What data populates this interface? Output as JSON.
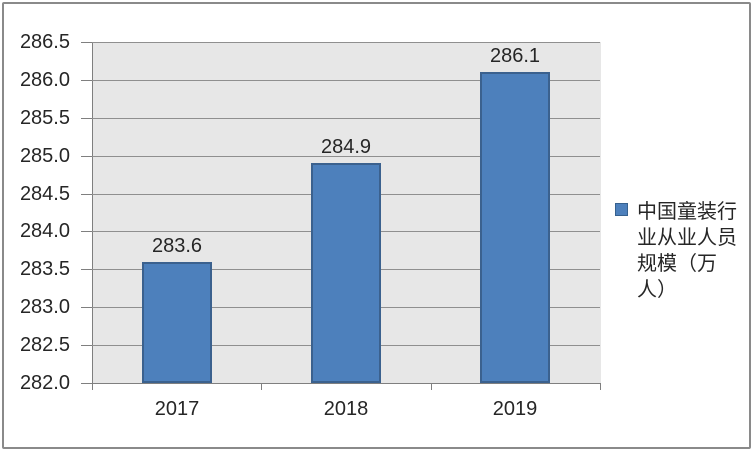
{
  "chart_data": {
    "type": "bar",
    "title": "",
    "categories": [
      "2017",
      "2018",
      "2019"
    ],
    "series": [
      {
        "name": "中国童装行业从业人员规模（万人）",
        "values": [
          283.6,
          284.9,
          286.1
        ],
        "color": "#4d80bc"
      }
    ],
    "data_labels": [
      "283.6",
      "284.9",
      "286.1"
    ],
    "xlabel": "",
    "ylabel": "",
    "ylim": [
      282.0,
      286.5
    ],
    "ytick_step": 0.5,
    "ytick_labels": [
      "286.5",
      "286.0",
      "285.5",
      "285.0",
      "284.5",
      "284.0",
      "283.5",
      "283.0",
      "282.5",
      "282.0"
    ],
    "grid": true,
    "legend_position": "right"
  },
  "legend": {
    "label": "中国童装行业从业人员规模（万人）",
    "marker": "blue-square"
  },
  "colors": {
    "bar_fill": "#4d80bc",
    "bar_border": "#3b618e",
    "plot_bg": "#e7e7e7",
    "gridline": "#8f8f8f",
    "axis": "#7f7f7f",
    "text": "#262626",
    "frame_border": "#8a8a8a"
  }
}
